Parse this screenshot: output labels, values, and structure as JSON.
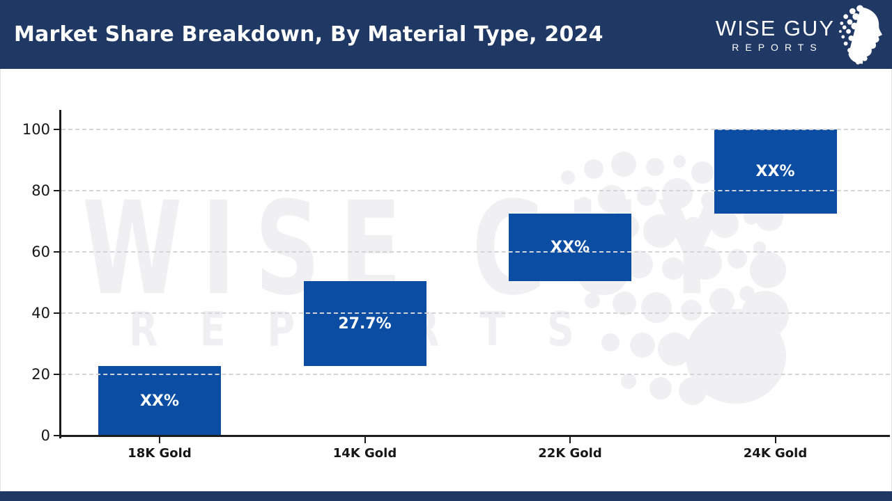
{
  "header": {
    "title": "Market Share Breakdown, By Material Type, 2024",
    "logo": {
      "name": "Wise Guy Reports",
      "line1": "WISE GUY",
      "line2": "REPORTS"
    }
  },
  "watermark": {
    "line1": "WISE GUY",
    "line2": "REPORTS"
  },
  "chart_data": {
    "type": "bar",
    "subtype": "floating-segment-breakdown",
    "title": "Market Share Breakdown, By Material Type, 2024",
    "categories": [
      "18K Gold",
      "14K Gold",
      "22K Gold",
      "24K Gold"
    ],
    "segments": [
      {
        "category": "18K Gold",
        "start": 0,
        "end": 22.6,
        "label": "XX%"
      },
      {
        "category": "14K Gold",
        "start": 22.6,
        "end": 50.3,
        "label": "27.7%"
      },
      {
        "category": "22K Gold",
        "start": 50.3,
        "end": 72.4,
        "label": "XX%"
      },
      {
        "category": "24K Gold",
        "start": 72.4,
        "end": 100,
        "label": "XX%"
      }
    ],
    "ylim": [
      0,
      100
    ],
    "yticks": [
      0,
      20,
      40,
      60,
      80,
      100
    ],
    "xlabel": "",
    "ylabel": "",
    "grid": {
      "horizontal": true,
      "style": "dashed",
      "drawn_over_bars": true
    },
    "legend": "none",
    "colors": {
      "bar": "#0B4DA2",
      "bar_label": "#FFFFFF",
      "header_bg": "#203864",
      "footer_bg": "#203864",
      "grid": "#D4D4D6",
      "axis": "#1C1C1C",
      "tick_text": "#161616",
      "watermark": "#F0F0F3"
    }
  }
}
